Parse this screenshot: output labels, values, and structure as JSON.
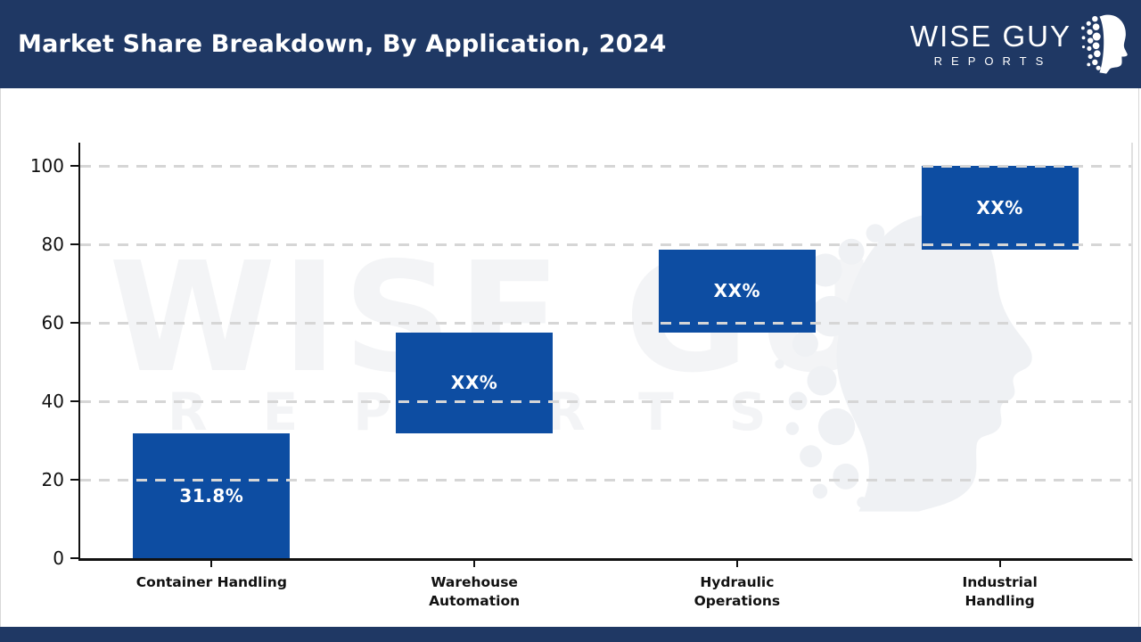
{
  "header": {
    "title": "Market Share Breakdown, By Application, 2024",
    "logo": {
      "brand": "WISE GUY",
      "sub": "REPORTS"
    }
  },
  "watermark": {
    "brand": "WISE GUY",
    "sub": "REPORTS"
  },
  "chart_data": {
    "type": "bar",
    "variant": "waterfall-floating-bars",
    "title": "Market Share Breakdown, By Application, 2024",
    "categories": [
      "Container Handling",
      "Warehouse Automation",
      "Hydraulic Operations",
      "Industrial Handling"
    ],
    "category_display": [
      "Container Handling",
      "Warehouse\nAutomation",
      "Hydraulic\nOperations",
      "Industrial\nHandling"
    ],
    "segments": [
      {
        "category": "Container Handling",
        "label": "31.8%",
        "start": 0,
        "end": 31.8
      },
      {
        "category": "Warehouse Automation",
        "label": "XX%",
        "start": 31.8,
        "end": 57.6
      },
      {
        "category": "Hydraulic Operations",
        "label": "XX%",
        "start": 57.6,
        "end": 78.6
      },
      {
        "category": "Industrial Handling",
        "label": "XX%",
        "start": 78.6,
        "end": 100
      }
    ],
    "ylim": [
      0,
      100
    ],
    "yticks": [
      0,
      20,
      40,
      60,
      80,
      100
    ],
    "grid": {
      "axis": "y",
      "style": "dashed",
      "drawn_over_bars": true
    },
    "legend": null,
    "colors": {
      "bar": "#0d4da2",
      "bar_label": "#ffffff",
      "axis": "#111111",
      "grid": "#d6d6d6",
      "header_bar": "#1f3864",
      "watermark": "#f3f4f6"
    }
  }
}
